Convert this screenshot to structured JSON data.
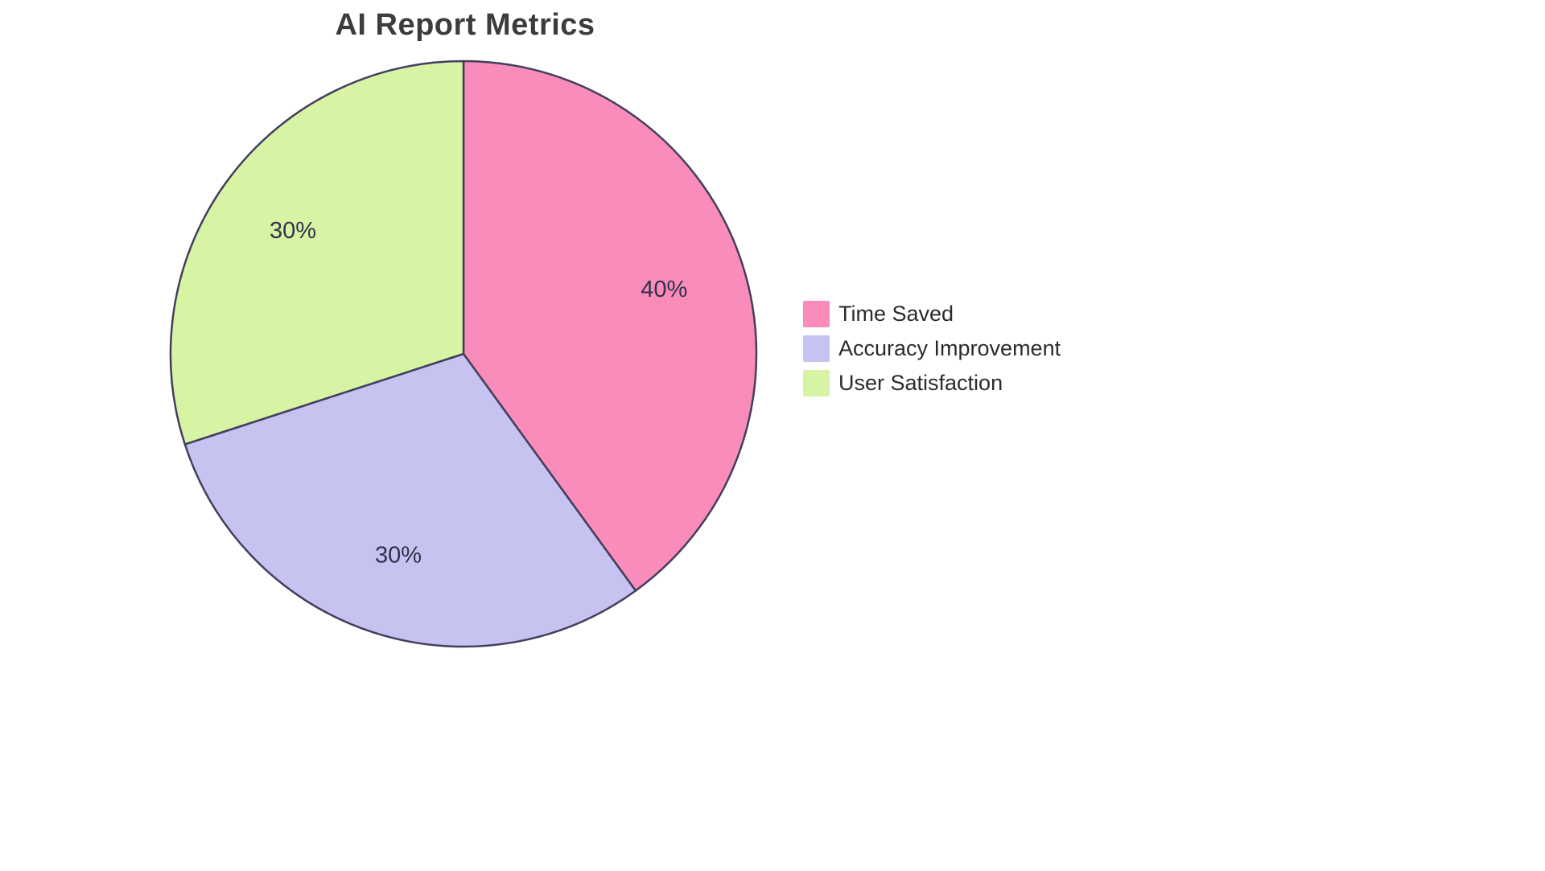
{
  "chart_data": {
    "type": "pie",
    "title": "AI Report Metrics",
    "labels": [
      "Time Saved",
      "Accuracy Improvement",
      "User Satisfaction"
    ],
    "values": [
      40,
      30,
      30
    ],
    "slice_labels": [
      "40%",
      "30%",
      "30%"
    ],
    "colors": [
      "#F98CBA",
      "#C7C3F1",
      "#D7F4A5"
    ],
    "stroke_color": "#433E5E",
    "label_color": "#33304A",
    "title_color": "#3C3C3C",
    "start_angle_deg": 0,
    "direction": "clockwise",
    "legend_position": "right",
    "unit": "%"
  }
}
